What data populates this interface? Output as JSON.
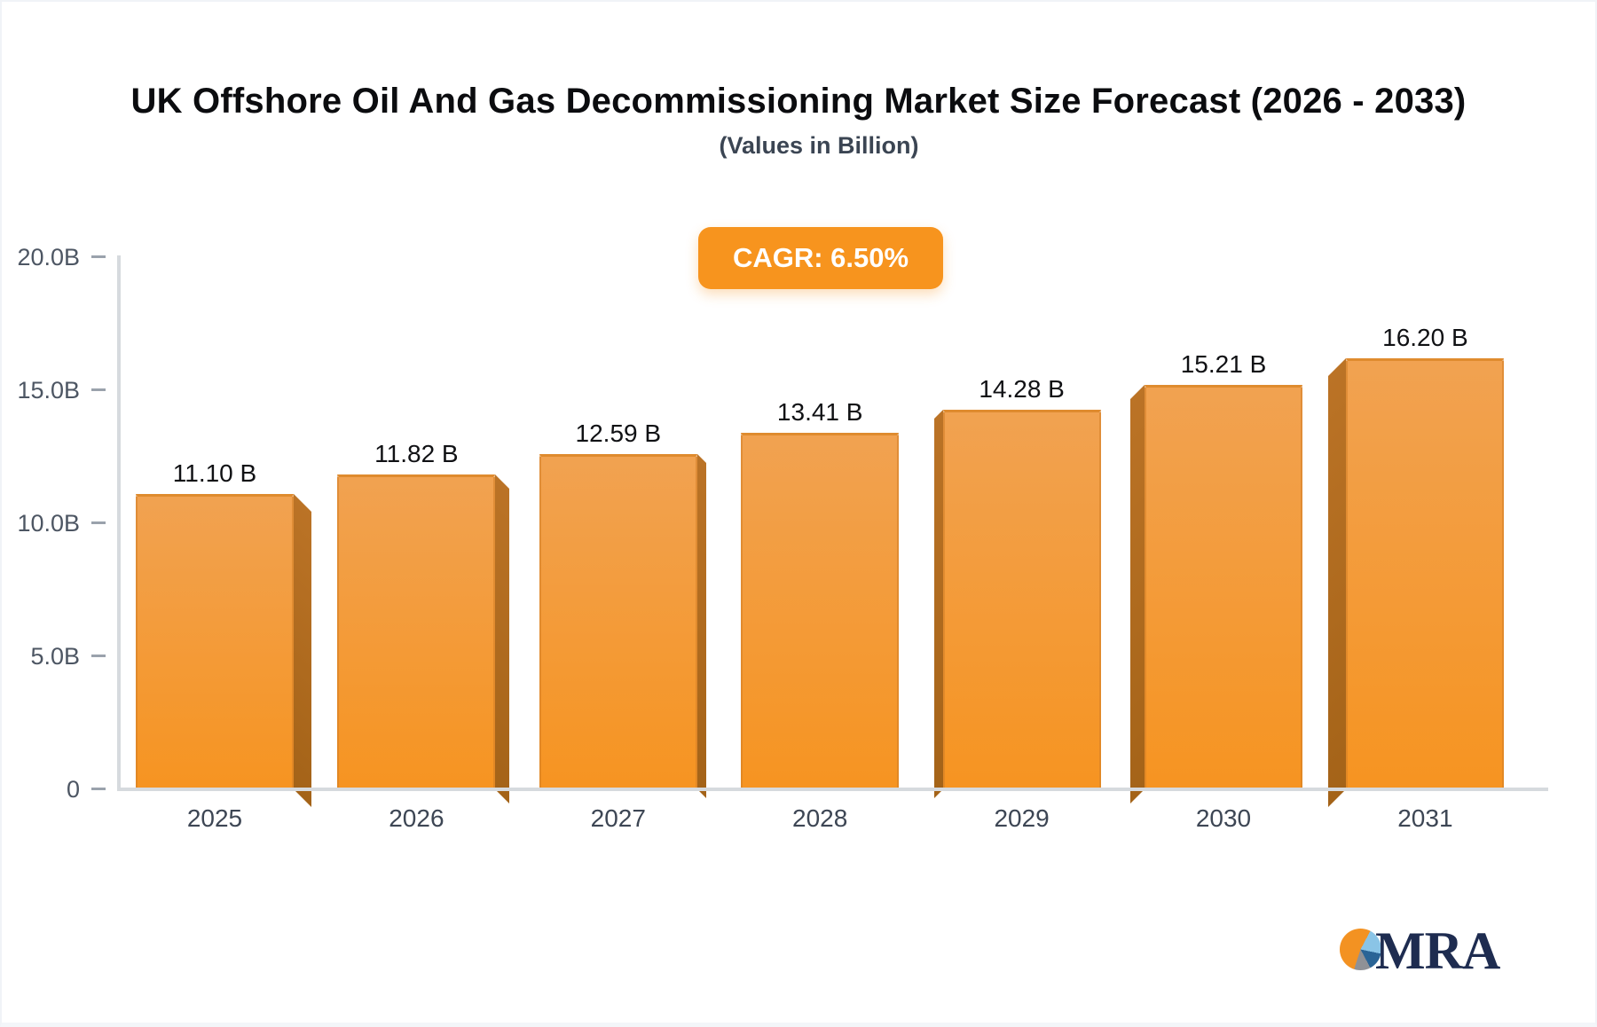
{
  "header": {
    "title": "UK Offshore Oil And Gas Decommissioning Market Size Forecast (2026 - 2033)",
    "subtitle": "(Values in Billion)"
  },
  "badge": {
    "label": "CAGR: 6.50%",
    "color": "#F7941E",
    "text_color": "#FFFFFF"
  },
  "chart_data": {
    "type": "bar",
    "title": "UK Offshore Oil And Gas Decommissioning Market Size Forecast (2026 - 2033)",
    "subtitle": "(Values in Billion)",
    "categories": [
      "2025",
      "2026",
      "2027",
      "2028",
      "2029",
      "2030",
      "2031"
    ],
    "values": [
      11.1,
      11.82,
      12.59,
      13.41,
      14.28,
      15.21,
      16.2
    ],
    "value_labels": [
      "11.10 B",
      "11.82 B",
      "12.59 B",
      "13.41 B",
      "14.28 B",
      "15.21 B",
      "16.20 B"
    ],
    "xlabel": "",
    "ylabel": "",
    "ylim": [
      0,
      20
    ],
    "yticks": [
      {
        "value": 0,
        "label": "0"
      },
      {
        "value": 5,
        "label": "5.0B"
      },
      {
        "value": 10,
        "label": "10.0B"
      },
      {
        "value": 15,
        "label": "15.0B"
      },
      {
        "value": 20,
        "label": "20.0B"
      }
    ],
    "grid": false,
    "legend": null,
    "bar_color_top": "#F1A251",
    "bar_color_bottom": "#F69421",
    "bar_side_color": "#AE6A1D",
    "style": "3d-perspective-center"
  },
  "logo": {
    "text": "MRA",
    "text_color": "#1E2C50",
    "pie_colors": [
      "#F39222",
      "#8AC4E6",
      "#2A6496",
      "#8F9196"
    ]
  }
}
